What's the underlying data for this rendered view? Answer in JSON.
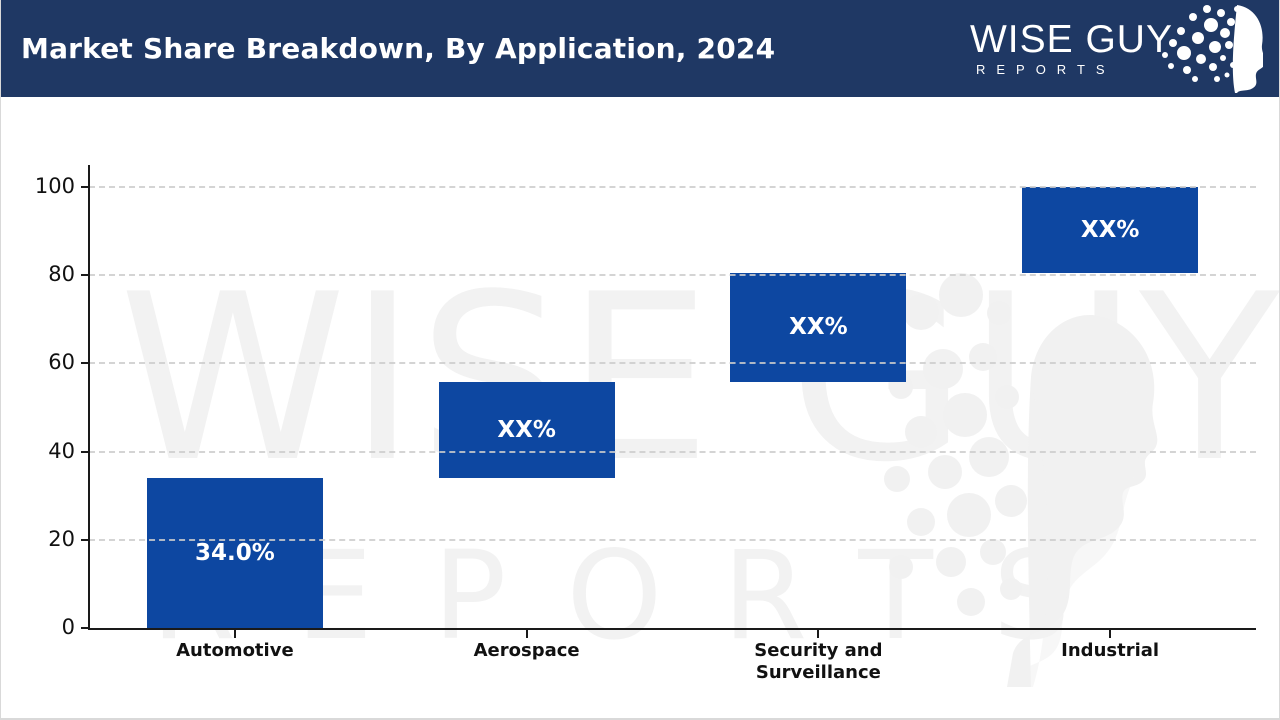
{
  "header": {
    "title": "Market Share Breakdown, By Application, 2024",
    "bg_color": "#1f3864",
    "logo": {
      "line1": "WISE GUY",
      "line2": "REPORTS"
    }
  },
  "watermark": {
    "line1": "WISE GUY",
    "line2": "REPORTS"
  },
  "chart_data": {
    "type": "bar",
    "subtype": "waterfall",
    "title": "Market Share Breakdown, By Application, 2024",
    "categories": [
      "Automotive",
      "Aerospace",
      "Security and Surveillance",
      "Industrial"
    ],
    "segments": [
      {
        "category": "Automotive",
        "start": 0,
        "end": 34.0,
        "label": "34.0%"
      },
      {
        "category": "Aerospace",
        "start": 34.0,
        "end": 55.8,
        "label": "XX%"
      },
      {
        "category": "Security and Surveillance",
        "start": 55.8,
        "end": 80.5,
        "label": "XX%"
      },
      {
        "category": "Industrial",
        "start": 80.5,
        "end": 100.0,
        "label": "XX%"
      }
    ],
    "xlabel": "",
    "ylabel": "",
    "ylim": [
      0,
      100
    ],
    "yticks": [
      0,
      20,
      40,
      60,
      80,
      100
    ],
    "grid": "horizontal-dashed",
    "legend": "none",
    "bar_color": "#0d47a1",
    "bar_label_color": "#ffffff",
    "axis_color": "#1a1a1a",
    "grid_color": "#cccccc"
  }
}
